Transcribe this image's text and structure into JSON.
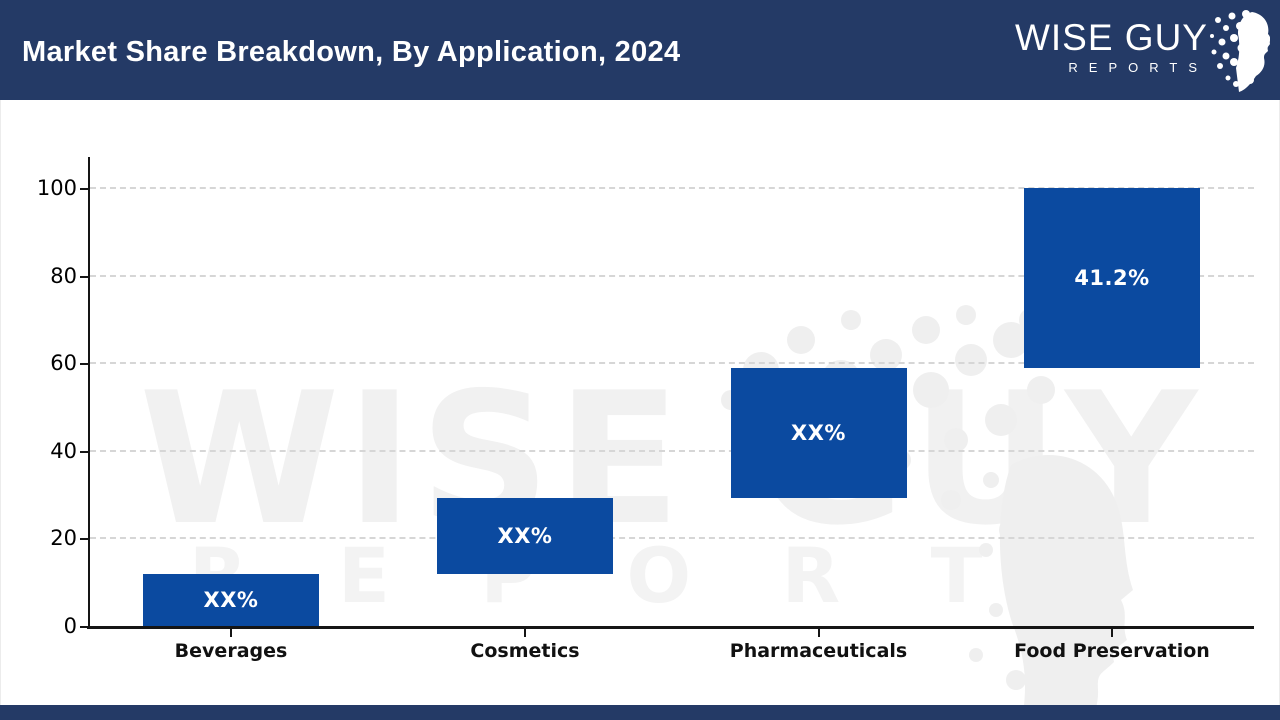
{
  "header": {
    "title": "Market Share Breakdown, By Application, 2024",
    "brand": {
      "name": "WISE GUY",
      "tagline": "REPORTS"
    }
  },
  "watermark": {
    "line1": "WISE GUY",
    "line2": "REPORTS"
  },
  "footer": {},
  "chart_data": {
    "type": "bar",
    "subtype": "waterfall-floating-bars",
    "title": "Market Share Breakdown, By Application, 2024",
    "categories": [
      "Beverages",
      "Cosmetics",
      "Pharmaceuticals",
      "Food Preservation"
    ],
    "series": [
      {
        "name": "Market Share",
        "segments": [
          {
            "category": "Beverages",
            "start": 0,
            "end": 11.8,
            "value": 11.8,
            "label": "XX%"
          },
          {
            "category": "Cosmetics",
            "start": 11.8,
            "end": 29.2,
            "value": 17.4,
            "label": "XX%"
          },
          {
            "category": "Pharmaceuticals",
            "start": 29.2,
            "end": 58.8,
            "value": 29.6,
            "label": "XX%"
          },
          {
            "category": "Food Preservation",
            "start": 58.8,
            "end": 100,
            "value": 41.2,
            "label": "41.2%"
          }
        ]
      }
    ],
    "xlabel": "",
    "ylabel": "",
    "ylim": [
      0,
      100
    ],
    "yticks": [
      0,
      20,
      40,
      60,
      80,
      100
    ],
    "grid": "horizontal-dashed",
    "legend": "none",
    "colors": {
      "bar": "#0b4aa0",
      "bar_label_text": "#ffffff",
      "header_band": "#243a66",
      "footer_band": "#243a66",
      "gridline": "#d6d6d6",
      "axis": "#151515",
      "watermark": "#f1f1f1"
    }
  }
}
